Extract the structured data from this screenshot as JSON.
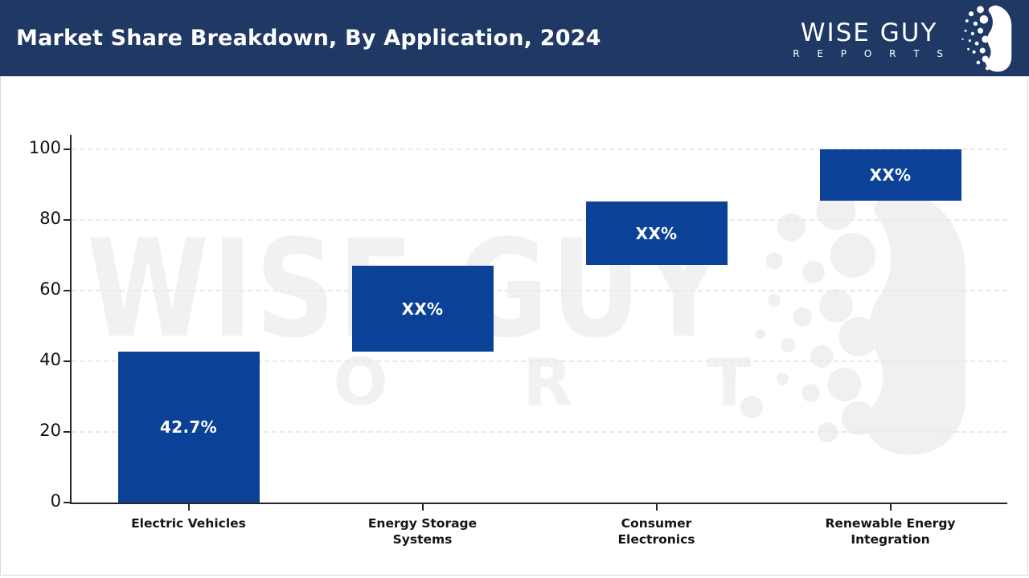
{
  "header": {
    "title": "Market Share Breakdown, By Application, 2024",
    "background_color": "#1f3864",
    "logo": {
      "line1": "WISE GUY",
      "line2": "R E P O R T S",
      "icon": "dotted-face-profile-icon"
    }
  },
  "watermark": {
    "line1": "WISE GUY",
    "line2": "P O R T S",
    "icon": "dotted-face-profile-watermark"
  },
  "chart_data": {
    "type": "bar",
    "subtype": "waterfall",
    "title": "Market Share Breakdown, By Application, 2024",
    "xlabel": "",
    "ylabel": "",
    "ylim": [
      0,
      100
    ],
    "yticks": [
      0,
      20,
      40,
      60,
      80,
      100
    ],
    "grid": "horizontal-dashed",
    "legend": "none",
    "bar_color": "#0b4197",
    "categories": [
      "Electric Vehicles",
      "Energy Storage\nSystems",
      "Consumer\nElectronics",
      "Renewable Energy\nIntegration"
    ],
    "segments": [
      {
        "category": "Electric Vehicles",
        "start": 0,
        "end": 42.7,
        "label": "42.7%"
      },
      {
        "category": "Energy Storage Systems",
        "start": 42.7,
        "end": 67.0,
        "label": "XX%"
      },
      {
        "category": "Consumer Electronics",
        "start": 67.2,
        "end": 85.2,
        "label": "XX%"
      },
      {
        "category": "Renewable Energy Integration",
        "start": 85.5,
        "end": 100,
        "label": "XX%"
      }
    ]
  }
}
